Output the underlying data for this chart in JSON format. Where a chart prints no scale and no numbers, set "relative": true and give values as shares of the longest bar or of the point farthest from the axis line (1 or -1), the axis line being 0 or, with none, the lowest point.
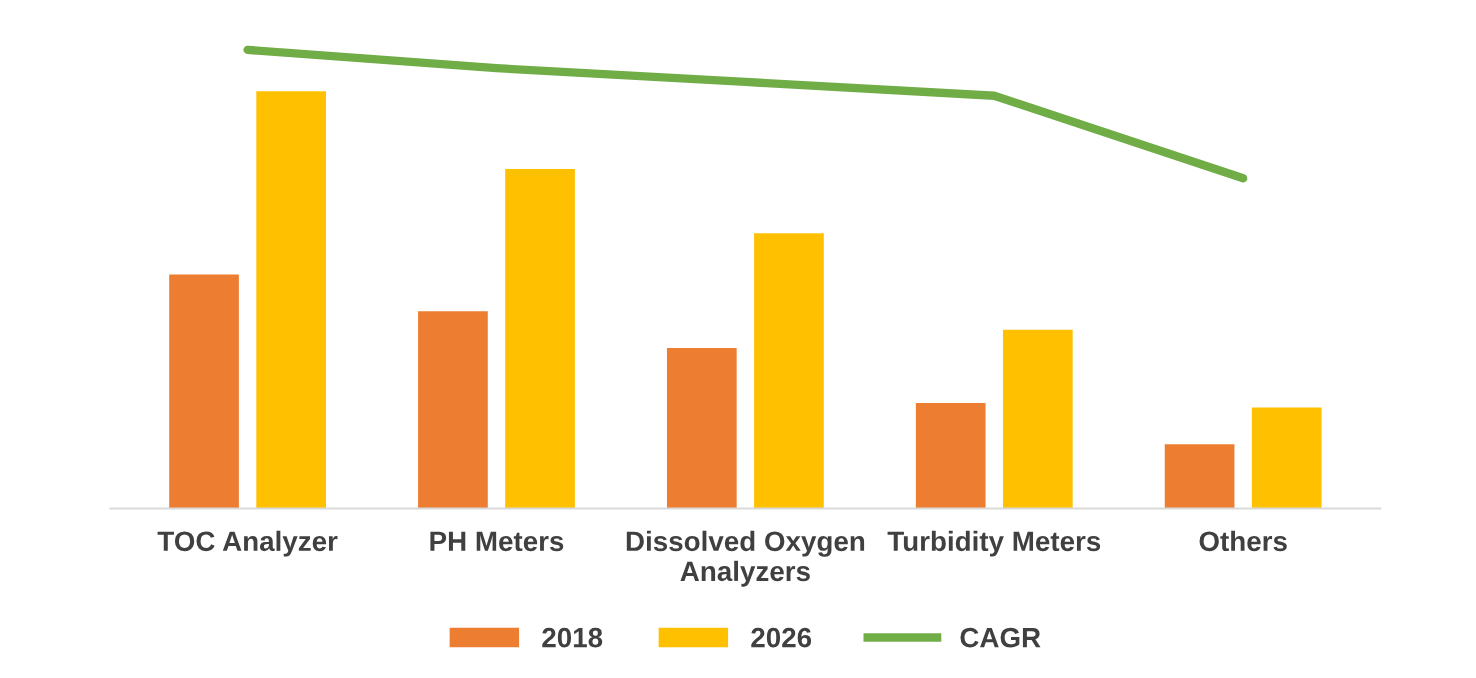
{
  "chart_data": {
    "type": "bar",
    "relative": true,
    "legend": "bottom",
    "grid": false,
    "categories": [
      "TOC Analyzer",
      "PH Meters",
      "Dissolved Oxygen\nAnalyzers",
      "Turbidity Meters",
      "Others"
    ],
    "series": [
      {
        "name": "2018",
        "color": "#ed7d31",
        "values": [
          0.51,
          0.43,
          0.35,
          0.23,
          0.14
        ]
      },
      {
        "name": "2026",
        "color": "#ffc000",
        "values": [
          0.91,
          0.74,
          0.6,
          0.39,
          0.22
        ]
      },
      {
        "name": "CAGR",
        "type": "line",
        "color": "#70ad47",
        "values": [
          1,
          0.96,
          0.93,
          0.9,
          0.72
        ]
      }
    ]
  }
}
